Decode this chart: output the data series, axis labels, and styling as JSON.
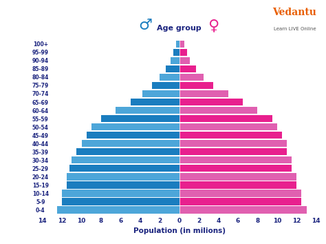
{
  "age_groups": [
    "100+",
    "95-99",
    "90-94",
    "85-89",
    "80-84",
    "75-79",
    "70-74",
    "65-69",
    "60-64",
    "55-59",
    "50-54",
    "45-49",
    "40-44",
    "35-39",
    "30-34",
    "25-29",
    "20-24",
    "15-19",
    "10-14",
    "5-9",
    "0-4"
  ],
  "male": [
    0.3,
    0.6,
    0.9,
    1.4,
    2.0,
    2.8,
    3.8,
    5.0,
    6.5,
    8.0,
    9.0,
    9.5,
    10.0,
    10.5,
    11.0,
    11.2,
    11.5,
    11.5,
    12.0,
    12.0,
    12.5
  ],
  "female": [
    0.5,
    0.8,
    1.1,
    1.7,
    2.5,
    3.5,
    5.0,
    6.5,
    8.0,
    9.5,
    10.0,
    10.5,
    11.0,
    11.0,
    11.5,
    11.5,
    12.0,
    12.0,
    12.5,
    12.5,
    13.0
  ],
  "male_colors": [
    "#4da6d9",
    "#1a7dbf",
    "#4da6d9",
    "#1a7dbf",
    "#4da6d9",
    "#1a7dbf",
    "#4da6d9",
    "#1a7dbf",
    "#4da6d9",
    "#1a7dbf",
    "#4da6d9",
    "#1a7dbf",
    "#4da6d9",
    "#1a7dbf",
    "#4da6d9",
    "#1a7dbf",
    "#4da6d9",
    "#1a7dbf",
    "#4da6d9",
    "#1a7dbf",
    "#4da6d9"
  ],
  "female_colors": [
    "#e060b0",
    "#e8208e",
    "#e060b0",
    "#e8208e",
    "#e060b0",
    "#e8208e",
    "#e060b0",
    "#e8208e",
    "#e060b0",
    "#e8208e",
    "#e060b0",
    "#e8208e",
    "#e060b0",
    "#e8208e",
    "#e060b0",
    "#e8208e",
    "#e060b0",
    "#e8208e",
    "#e060b0",
    "#e8208e",
    "#e060b0"
  ],
  "male_icon_color": "#1a7dbf",
  "female_icon_color": "#e8208e",
  "bg_color": "#ffffff",
  "title_color": "#1a237e",
  "xlabel": "Population (in milions)",
  "age_label": "Age group",
  "xlim": 14,
  "tick_positions": [
    0,
    2,
    4,
    6,
    8,
    10,
    12,
    14
  ],
  "vedantu_text": "Vedantu",
  "vedantu_sub": "Learn LIVE Online",
  "vedantu_color": "#e85d00"
}
